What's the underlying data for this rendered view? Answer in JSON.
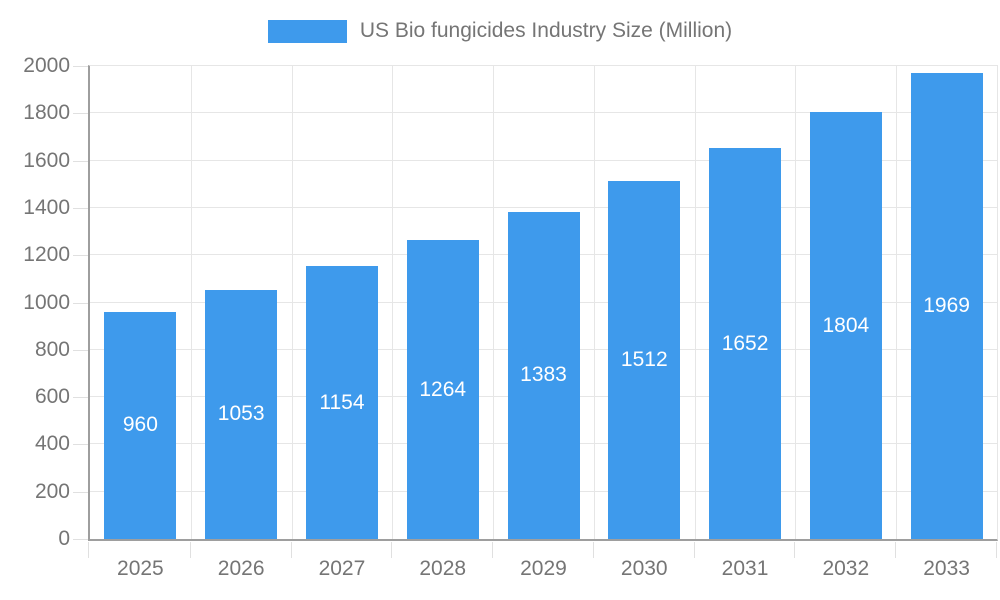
{
  "chart_data": {
    "type": "bar",
    "title": "US Bio fungicides Industry Size (Million)",
    "categories": [
      "2025",
      "2026",
      "2027",
      "2028",
      "2029",
      "2030",
      "2031",
      "2032",
      "2033"
    ],
    "values": [
      960,
      1053,
      1154,
      1264,
      1383,
      1512,
      1652,
      1804,
      1969
    ],
    "xlabel": "",
    "ylabel": "",
    "ylim": [
      0,
      2000
    ],
    "ytick_step": 200,
    "grid": true,
    "legend_position": "top-center",
    "bar_color": "#3e9aec",
    "value_label_color": "#ffffff",
    "axis_text_color": "#757575",
    "gridline_color": "#e6e6e6",
    "axis_line_color": "#9e9e9e"
  }
}
